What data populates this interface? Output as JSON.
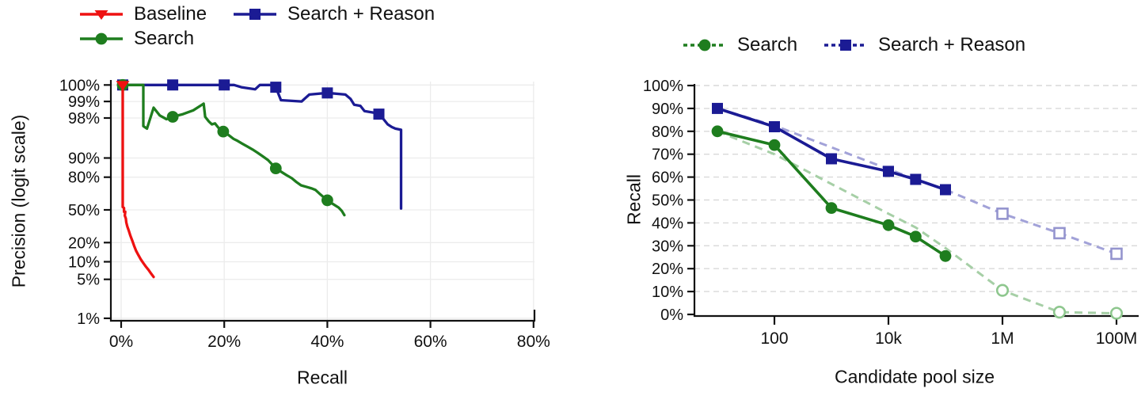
{
  "chart_data": [
    {
      "type": "line",
      "xlabel": "Recall",
      "ylabel": "Precision (logit scale)",
      "x_axis": {
        "unit": "%",
        "ticks": [
          0,
          20,
          40,
          60,
          80
        ],
        "range": [
          -2,
          80.5
        ]
      },
      "y_axis": {
        "unit": "%",
        "scale": "logit",
        "ticks": [
          100,
          99,
          98,
          90,
          80,
          50,
          20,
          10,
          5,
          1
        ]
      },
      "legend": {
        "position": "top-left",
        "entries": [
          "Baseline",
          "Search",
          "Search + Reason"
        ]
      },
      "series": [
        {
          "name": "Baseline",
          "color": "#ee1111",
          "marker": "triangle-down",
          "line": "solid",
          "points": [
            [
              0.3,
              100
            ],
            [
              0.3,
              53
            ],
            [
              0.55,
              52
            ],
            [
              0.55,
              48
            ],
            [
              0.8,
              48
            ],
            [
              0.7,
              44
            ],
            [
              0.9,
              41
            ],
            [
              1.0,
              37
            ],
            [
              1.2,
              33
            ],
            [
              1.5,
              29
            ],
            [
              1.8,
              25
            ],
            [
              2.2,
              21
            ],
            [
              2.5,
              18
            ],
            [
              2.9,
              15
            ],
            [
              3.3,
              13
            ],
            [
              3.8,
              11
            ],
            [
              4.3,
              9.5
            ],
            [
              4.8,
              8.3
            ],
            [
              5.3,
              7.3
            ],
            [
              5.8,
              6.3
            ],
            [
              6.3,
              5.5
            ]
          ],
          "marker_points": [
            [
              0.3,
              100
            ]
          ]
        },
        {
          "name": "Search",
          "color": "#1e7d1e",
          "marker": "circle",
          "line": "solid",
          "points": [
            [
              0.3,
              100
            ],
            [
              4.3,
              100
            ],
            [
              4.3,
              97.2
            ],
            [
              5.0,
              96.9
            ],
            [
              6.3,
              98.7
            ],
            [
              7.5,
              98.2
            ],
            [
              8.8,
              97.9
            ],
            [
              10,
              98.1
            ],
            [
              12,
              98.3
            ],
            [
              14,
              98.55
            ],
            [
              16,
              98.9
            ],
            [
              16.3,
              98.1
            ],
            [
              17,
              97.7
            ],
            [
              17.6,
              97.4
            ],
            [
              18.2,
              97.5
            ],
            [
              19,
              96.9
            ],
            [
              19.8,
              96.5
            ],
            [
              20.8,
              96.0
            ],
            [
              21.8,
              95.3
            ],
            [
              22.6,
              94.9
            ],
            [
              23.5,
              94.3
            ],
            [
              24.5,
              93.6
            ],
            [
              25.5,
              92.8
            ],
            [
              26.5,
              91.8
            ],
            [
              27.5,
              90.6
            ],
            [
              28.5,
              89.2
            ],
            [
              29.2,
              87.5
            ],
            [
              30,
              85.3
            ],
            [
              31,
              83.5
            ],
            [
              32,
              81.5
            ],
            [
              33.1,
              79.3
            ],
            [
              34,
              76.5
            ],
            [
              34.9,
              73.9
            ],
            [
              36,
              72.5
            ],
            [
              37,
              71.2
            ],
            [
              37.7,
              70
            ],
            [
              38.5,
              66.5
            ],
            [
              39.2,
              63.5
            ],
            [
              40,
              60
            ],
            [
              41,
              56.5
            ],
            [
              42.2,
              52.4
            ],
            [
              42.8,
              49
            ],
            [
              43.3,
              44.5
            ]
          ],
          "marker_points": [
            [
              0.3,
              100
            ],
            [
              10,
              98.1
            ],
            [
              19.8,
              96.5
            ],
            [
              30,
              85.3
            ],
            [
              40,
              60
            ]
          ]
        },
        {
          "name": "Search + Reason",
          "color": "#1b1b94",
          "marker": "square",
          "line": "solid",
          "points": [
            [
              0.3,
              100
            ],
            [
              21.9,
              100
            ],
            [
              23.3,
              99.45
            ],
            [
              26,
              99.4
            ],
            [
              26.9,
              99.75
            ],
            [
              29.3,
              99.75
            ],
            [
              29.6,
              99.5
            ],
            [
              30,
              99.45
            ],
            [
              31,
              99.05
            ],
            [
              35,
              99.0
            ],
            [
              36.5,
              99.25
            ],
            [
              40,
              99.3
            ],
            [
              43.5,
              99.25
            ],
            [
              44.5,
              99.1
            ],
            [
              45.2,
              98.85
            ],
            [
              46.4,
              98.8
            ],
            [
              47.2,
              98.5
            ],
            [
              49,
              98.4
            ],
            [
              50,
              98.3
            ],
            [
              50.9,
              97.9
            ],
            [
              51.7,
              97.4
            ],
            [
              52.5,
              97.1
            ],
            [
              53.2,
              96.9
            ],
            [
              54.3,
              96.75
            ],
            [
              54.3,
              51.5
            ]
          ],
          "marker_points": [
            [
              0.3,
              100
            ],
            [
              10,
              100
            ],
            [
              20,
              100
            ],
            [
              30,
              99.45
            ],
            [
              40,
              99.3
            ],
            [
              50,
              98.3
            ]
          ]
        }
      ]
    },
    {
      "type": "line",
      "xlabel": "Candidate pool size",
      "ylabel": "Recall",
      "x_axis": {
        "scale": "log",
        "ticks": [
          100,
          10000,
          1000000,
          100000000
        ],
        "tick_labels": [
          "100",
          "10k",
          "1M",
          "100M"
        ]
      },
      "y_axis": {
        "unit": "%",
        "ticks": [
          0,
          10,
          20,
          30,
          40,
          50,
          60,
          70,
          80,
          90,
          100
        ],
        "range": [
          0,
          100
        ]
      },
      "legend": {
        "position": "top",
        "entries": [
          "Search",
          "Search + Reason"
        ]
      },
      "series": [
        {
          "name": "Search",
          "color": "#1e7d1e",
          "marker": "circle",
          "line": "solid-with-dashed-extrapolation",
          "trend_color": "#a6cfa6",
          "open_marker_color": "#8ec78e",
          "solid_points": [
            [
              10,
              80
            ],
            [
              100,
              74
            ],
            [
              1000,
              46.5
            ],
            [
              10000,
              39
            ],
            [
              30000,
              34
            ],
            [
              100000,
              25.5
            ]
          ],
          "extrapolated_points": [
            [
              1000000,
              10.5
            ],
            [
              10000000,
              1
            ],
            [
              100000000,
              0.5
            ]
          ],
          "trend_points": [
            [
              10,
              80
            ],
            [
              100,
              70
            ],
            [
              1000,
              57
            ],
            [
              10000,
              44
            ],
            [
              30000,
              38
            ],
            [
              100000,
              29
            ],
            [
              1000000,
              10.5
            ],
            [
              10000000,
              1
            ],
            [
              100000000,
              0.5
            ]
          ]
        },
        {
          "name": "Search + Reason",
          "color": "#1b1b94",
          "marker": "square",
          "line": "solid-with-dashed-extrapolation",
          "trend_color": "#a2a2d8",
          "open_marker_color": "#9494ce",
          "solid_points": [
            [
              10,
              90
            ],
            [
              100,
              82
            ],
            [
              1000,
              68
            ],
            [
              10000,
              62.5
            ],
            [
              30000,
              59
            ],
            [
              100000,
              54.5
            ]
          ],
          "extrapolated_points": [
            [
              1000000,
              44
            ],
            [
              10000000,
              35.5
            ],
            [
              100000000,
              26.5
            ]
          ],
          "trend_points": [
            [
              10,
              90
            ],
            [
              100,
              82.5
            ],
            [
              1000,
              73
            ],
            [
              10000,
              63.5
            ],
            [
              30000,
              59
            ],
            [
              100000,
              54.5
            ],
            [
              1000000,
              44
            ],
            [
              10000000,
              35.5
            ],
            [
              100000000,
              26.5
            ]
          ]
        }
      ]
    }
  ]
}
